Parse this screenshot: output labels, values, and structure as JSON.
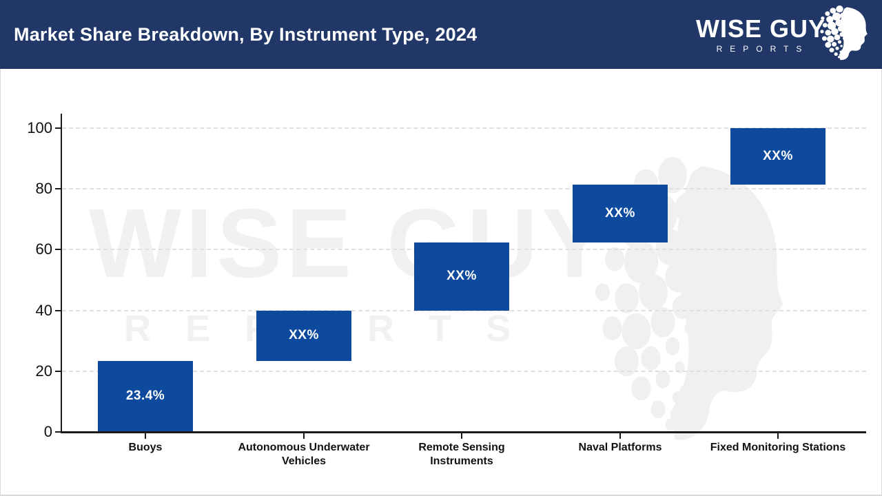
{
  "header": {
    "title": "Market Share Breakdown, By Instrument Type, 2024",
    "logo": {
      "line1": "WISE GUY",
      "line2": "REPORTS"
    }
  },
  "watermark": {
    "line1": "WISE GUY",
    "line2": "REPORTS"
  },
  "colors": {
    "header_bg": "#203767",
    "bar": "#0d4a9e",
    "title_text": "#ffffff",
    "axis": "#1a1a1a",
    "gridline": "#e0e0e0",
    "watermark": "#f1f1f3",
    "category_text": "#111111",
    "bar_label_text": "#ffffff",
    "frame_border": "#d9d9d9"
  },
  "chart_data": {
    "type": "bar",
    "variant": "waterfall",
    "title": "Market Share Breakdown, By Instrument Type, 2024",
    "categories": [
      "Buoys",
      "Autonomous Underwater Vehicles",
      "Remote Sensing Instruments",
      "Naval Platforms",
      "Fixed Monitoring Stations"
    ],
    "bars": [
      {
        "category": "Buoys",
        "start": 0,
        "end": 23.4,
        "label": "23.4%"
      },
      {
        "category": "Autonomous Underwater Vehicles",
        "start": 23.4,
        "end": 40,
        "label": "XX%"
      },
      {
        "category": "Remote Sensing Instruments",
        "start": 40,
        "end": 62.4,
        "label": "XX%"
      },
      {
        "category": "Naval Platforms",
        "start": 62.4,
        "end": 81.5,
        "label": "XX%"
      },
      {
        "category": "Fixed Monitoring Stations",
        "start": 81.5,
        "end": 100,
        "label": "XX%"
      }
    ],
    "xlabel": "",
    "ylabel": "",
    "ylim": [
      0,
      105
    ],
    "yticks": [
      0,
      20,
      40,
      60,
      80,
      100
    ],
    "grid": "horizontal-dashed",
    "legend": "none"
  }
}
